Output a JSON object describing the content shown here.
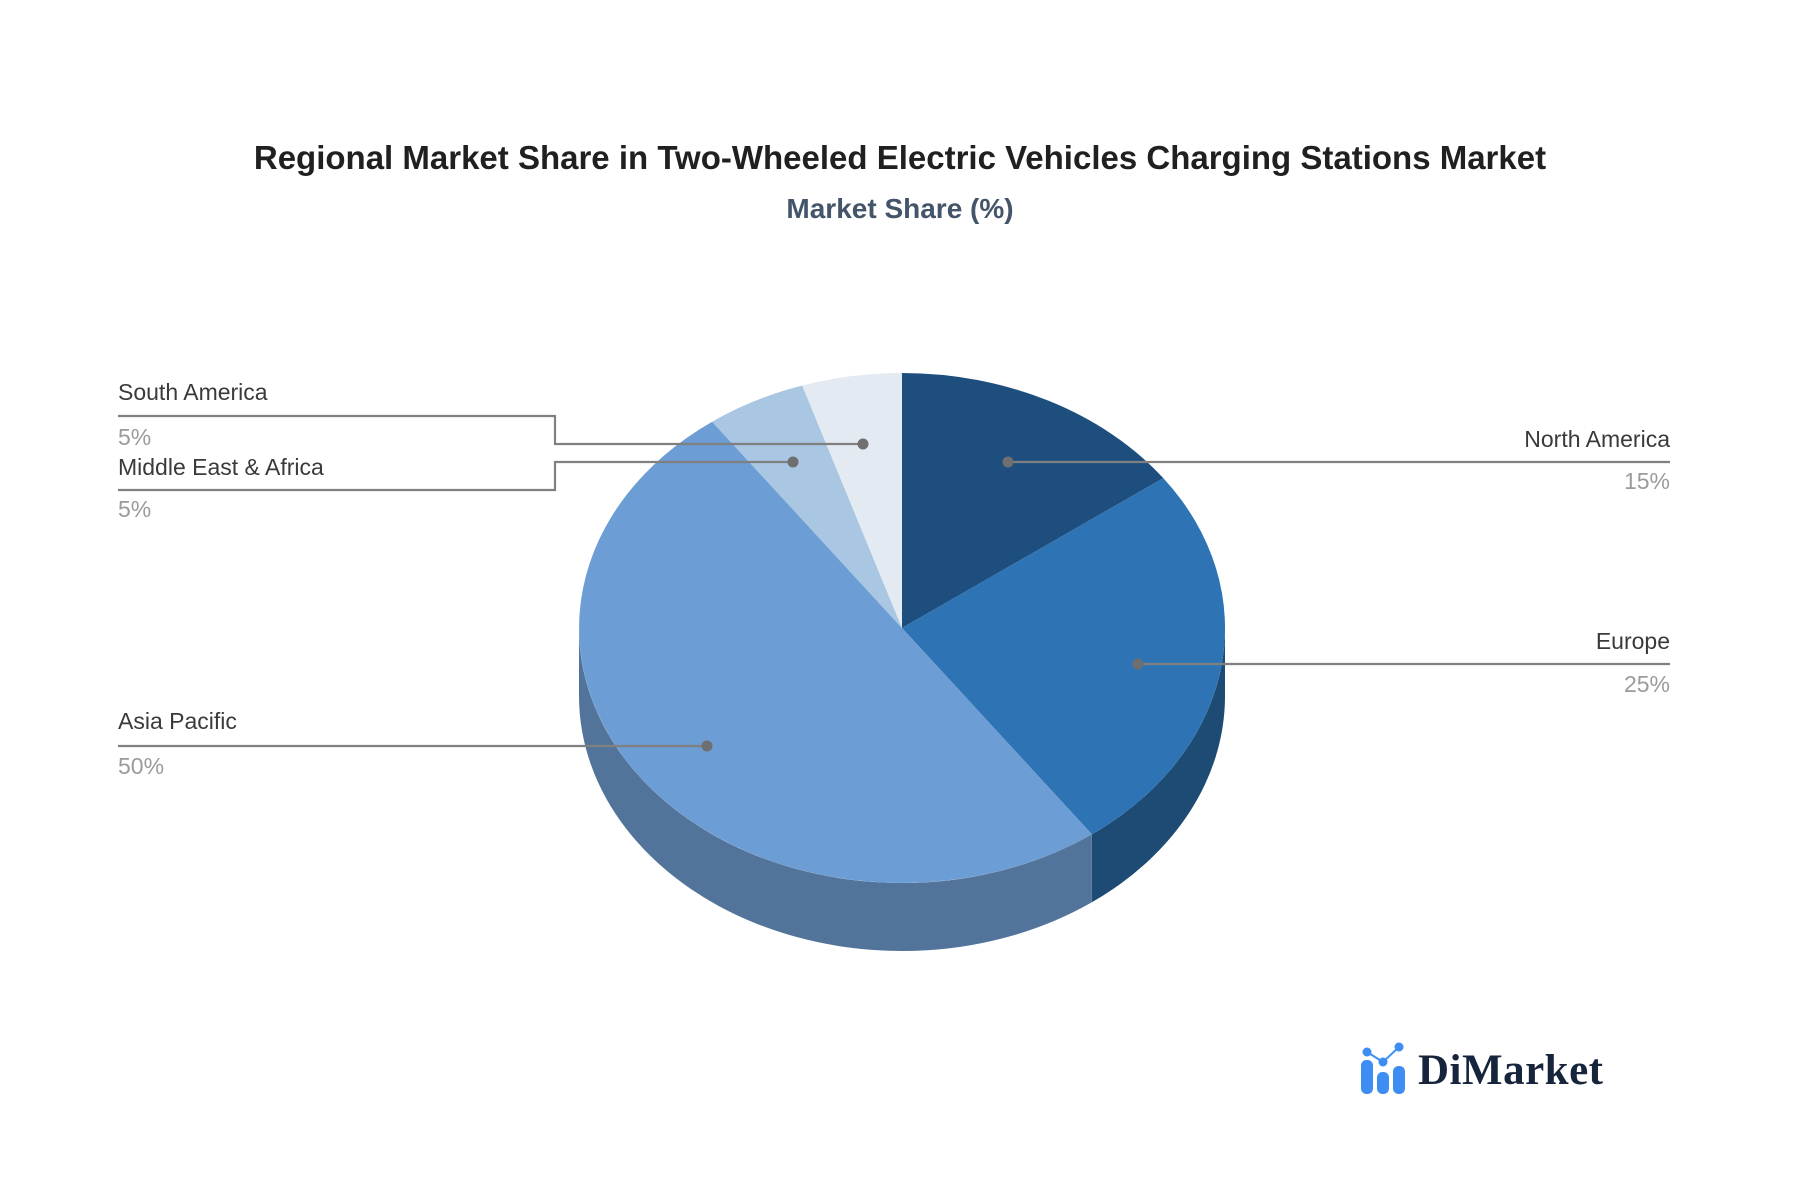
{
  "header": {
    "title": "Regional Market Share in Two-Wheeled Electric Vehicles Charging Stations Market",
    "subtitle": "Market Share (%)"
  },
  "chart_data": {
    "type": "pie",
    "title": "Regional Market Share in Two-Wheeled Electric Vehicles Charging Stations Market",
    "subtitle": "Market Share (%)",
    "unit": "%",
    "effect": "3d",
    "start_angle_deg": -90,
    "direction": "clockwise",
    "legend_position": "callouts",
    "slices": [
      {
        "label": "North America",
        "value": 15,
        "value_label": "15%",
        "color": "#1D4E7E",
        "side_color": "#173E64"
      },
      {
        "label": "Europe",
        "value": 25,
        "value_label": "25%",
        "color": "#2E74B5",
        "side_color": "#1D4B73"
      },
      {
        "label": "Asia Pacific",
        "value": 50,
        "value_label": "50%",
        "color": "#6D9DD5",
        "side_color": "#53749A"
      },
      {
        "label": "Middle East & Africa",
        "value": 5,
        "value_label": "5%",
        "color": "#A9C6E2",
        "side_color": "#7E9AB8"
      },
      {
        "label": "South America",
        "value": 5,
        "value_label": "5%",
        "color": "#E4EAF2",
        "side_color": "#B3BCC9"
      }
    ]
  },
  "styles": {
    "background": "#FFFFFF",
    "title_color": "#202020",
    "subtitle_color": "#44546A",
    "label_color": "#3A3A3A",
    "value_color": "#9B9B9B",
    "connector_color": "#808080",
    "dot_color": "#6F6F6F"
  },
  "branding": {
    "logo_text": "DiMarket",
    "logo_text_color": "#16243C",
    "logo_icon": "bar-chart-with-dots-icon",
    "logo_icon_color": "#3E8DF3"
  }
}
